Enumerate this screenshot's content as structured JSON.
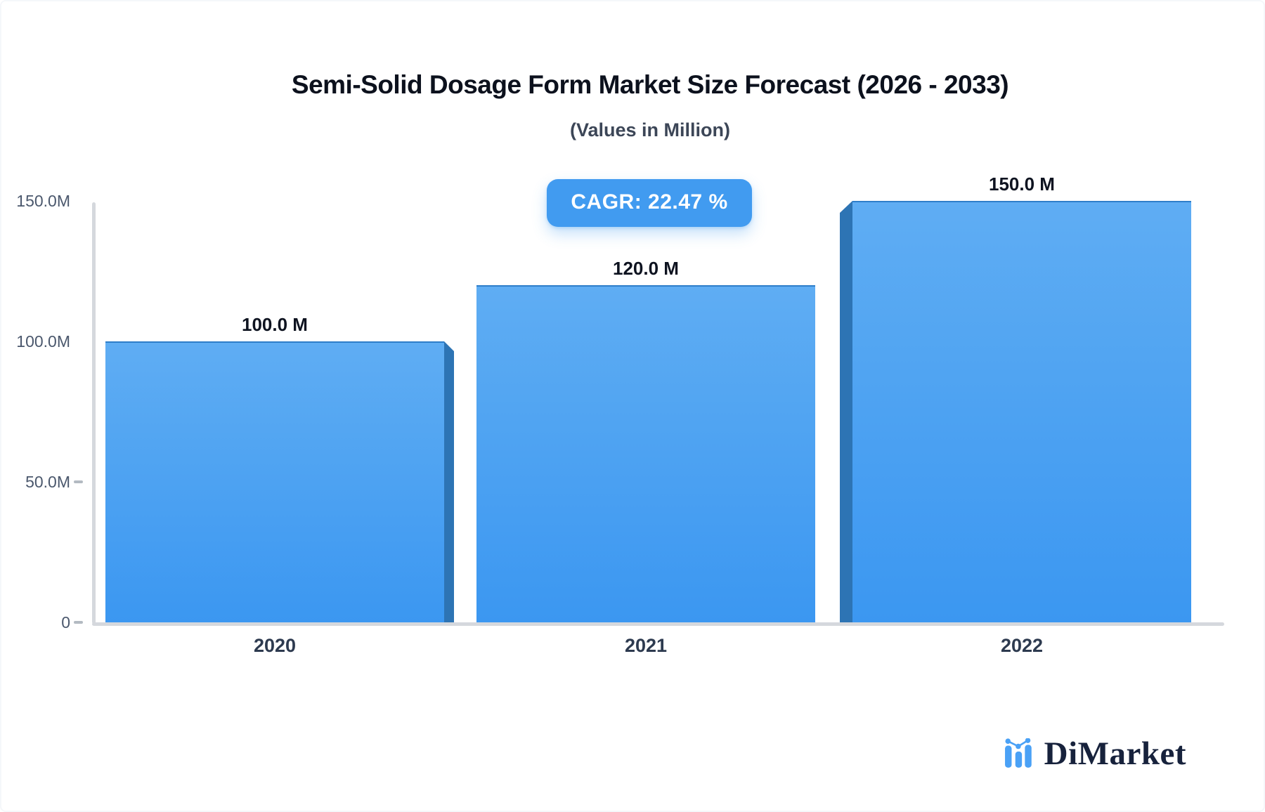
{
  "header": {
    "title": "Semi-Solid Dosage Form Market Size Forecast (2026 - 2033)",
    "subtitle": "(Values in Million)"
  },
  "badge": {
    "label": "CAGR: 22.47 %"
  },
  "branding": {
    "name": "DiMarket",
    "icon": "bar-line-chart-icon"
  },
  "chart_data": {
    "type": "bar",
    "title": "Semi-Solid Dosage Form Market Size Forecast (2026 - 2033)",
    "subtitle": "(Values in Million)",
    "unit": "Million",
    "cagr_percent": 22.47,
    "categories": [
      "2020",
      "2021",
      "2022"
    ],
    "values": [
      100,
      120,
      150
    ],
    "bar_labels": [
      "100.0 M",
      "120.0 M",
      "150.0 M"
    ],
    "bar_3d_shadow_side": [
      "right",
      "none",
      "left"
    ],
    "ylim": [
      0,
      150
    ],
    "y_ticks": [
      {
        "label": "150.0M",
        "value": 150,
        "dash": false
      },
      {
        "label": "100.0M",
        "value": 100,
        "dash": false
      },
      {
        "label": "50.0M",
        "value": 50,
        "dash": true
      },
      {
        "label": "0",
        "value": 0,
        "dash": true
      }
    ],
    "grid": false,
    "legend": "none",
    "colors": {
      "bar_gradient_top": "#5fadf3",
      "bar_gradient_bottom": "#3b97f1",
      "bar_top_border": "#2e7ec9",
      "bar_side_shadow": "#2d74b4",
      "axis_line": "#d5d8dd",
      "badge_background": "#419bf0",
      "badge_text": "#ffffff",
      "brand_icon": "#4aa1f6",
      "brand_text": "#17223c"
    }
  }
}
